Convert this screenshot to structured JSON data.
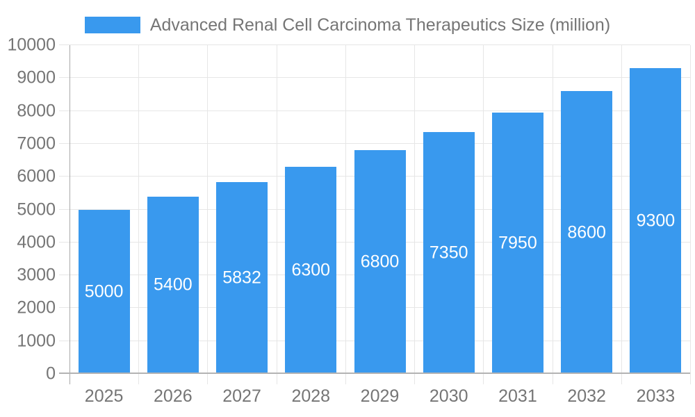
{
  "legend": {
    "label": "Advanced Renal Cell Carcinoma Therapeutics Size (million)"
  },
  "chart_data": {
    "type": "bar",
    "title": "Advanced Renal Cell Carcinoma Therapeutics Size (million)",
    "categories": [
      "2025",
      "2026",
      "2027",
      "2028",
      "2029",
      "2030",
      "2031",
      "2032",
      "2033"
    ],
    "values": [
      5000,
      5400,
      5832,
      6300,
      6800,
      7350,
      7950,
      8600,
      9300
    ],
    "xlabel": "",
    "ylabel": "",
    "ylim": [
      0,
      10000
    ],
    "y_tick_step": 1000,
    "y_tick_labels": [
      "0",
      "1000",
      "2000",
      "3000",
      "4000",
      "5000",
      "6000",
      "7000",
      "8000",
      "9000",
      "10000"
    ],
    "grid": true,
    "legend_position": "top-center",
    "bar_labels_inside": true,
    "colors": {
      "bar": "#3999ee",
      "bar_label": "#ffffff",
      "grid": "#e6e6e6",
      "axis": "#b3b3b3",
      "tick_text": "#757575",
      "legend_text": "#757575"
    }
  }
}
